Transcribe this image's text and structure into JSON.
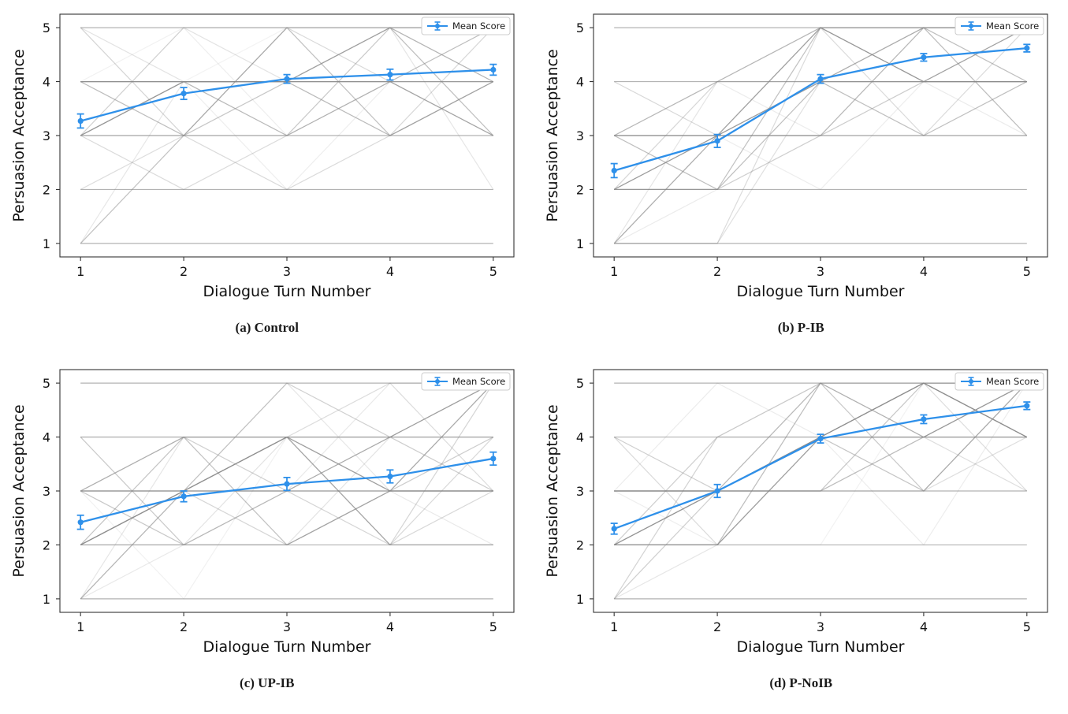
{
  "figure": {
    "xlabel": "Dialogue Turn Number",
    "ylabel": "Persuasion Acceptance",
    "legend_label": "Mean Score",
    "x_ticks": [
      1,
      2,
      3,
      4,
      5
    ],
    "y_ticks": [
      1,
      2,
      3,
      4,
      5
    ],
    "xlim": [
      0.8,
      5.2
    ],
    "ylim": [
      0.75,
      5.25
    ],
    "colors": {
      "mean_line": "#2E90EA",
      "trajectory": "#888888",
      "level_line": "#8a8a8a",
      "spine": "#333333",
      "tick_label": "#111111",
      "legend_border": "#cccccc"
    }
  },
  "chart_data": [
    {
      "type": "line",
      "subplot": "a",
      "caption": "(a) Control",
      "x": [
        1,
        2,
        3,
        4,
        5
      ],
      "series": [
        {
          "name": "Mean Score",
          "values": [
            3.27,
            3.78,
            4.05,
            4.13,
            4.22
          ],
          "errors": [
            0.13,
            0.11,
            0.08,
            0.1,
            0.1
          ]
        }
      ],
      "background": {
        "count": 34,
        "seed": 11,
        "noise": 1.6
      },
      "xlabel": "Dialogue Turn Number",
      "ylabel": "Persuasion Acceptance",
      "legend": "Mean Score"
    },
    {
      "type": "line",
      "subplot": "b",
      "caption": "(b) P-IB",
      "x": [
        1,
        2,
        3,
        4,
        5
      ],
      "series": [
        {
          "name": "Mean Score",
          "values": [
            2.35,
            2.9,
            4.05,
            4.45,
            4.62
          ],
          "errors": [
            0.13,
            0.12,
            0.08,
            0.07,
            0.07
          ]
        }
      ],
      "background": {
        "count": 34,
        "seed": 22,
        "noise": 1.6
      },
      "xlabel": "Dialogue Turn Number",
      "ylabel": "Persuasion Acceptance",
      "legend": "Mean Score"
    },
    {
      "type": "line",
      "subplot": "c",
      "caption": "(c) UP-IB",
      "x": [
        1,
        2,
        3,
        4,
        5
      ],
      "series": [
        {
          "name": "Mean Score",
          "values": [
            2.42,
            2.9,
            3.13,
            3.27,
            3.6
          ],
          "errors": [
            0.13,
            0.1,
            0.12,
            0.12,
            0.12
          ]
        }
      ],
      "background": {
        "count": 34,
        "seed": 33,
        "noise": 1.6
      },
      "xlabel": "Dialogue Turn Number",
      "ylabel": "Persuasion Acceptance",
      "legend": "Mean Score"
    },
    {
      "type": "line",
      "subplot": "d",
      "caption": "(d) P-NoIB",
      "x": [
        1,
        2,
        3,
        4,
        5
      ],
      "series": [
        {
          "name": "Mean Score",
          "values": [
            2.3,
            3.0,
            3.97,
            4.33,
            4.58
          ],
          "errors": [
            0.1,
            0.12,
            0.08,
            0.08,
            0.07
          ]
        }
      ],
      "background": {
        "count": 34,
        "seed": 44,
        "noise": 1.6
      },
      "xlabel": "Dialogue Turn Number",
      "ylabel": "Persuasion Acceptance",
      "legend": "Mean Score"
    }
  ]
}
